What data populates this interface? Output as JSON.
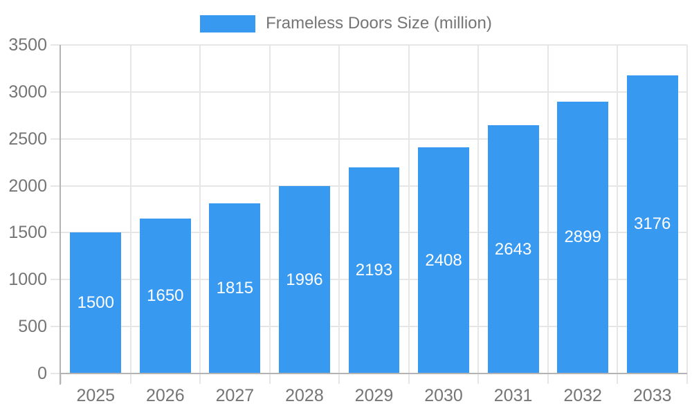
{
  "colors": {
    "bar": "#3899F0",
    "grid": "#E6E6E6",
    "axis": "#B3B3B3",
    "text": "#757575",
    "bar_label": "#FFFFFF",
    "background": "#FFFFFF"
  },
  "chart_data": {
    "type": "bar",
    "title": "Frameless Doors Size (million)",
    "series_name": "Frameless Doors Size (million)",
    "legend_position": "top",
    "categories": [
      "2025",
      "2026",
      "2027",
      "2028",
      "2029",
      "2030",
      "2031",
      "2032",
      "2033"
    ],
    "values": [
      1500,
      1650,
      1815,
      1996,
      2193,
      2408,
      2643,
      2899,
      3176
    ],
    "xlabel": "",
    "ylabel": "",
    "ylim": [
      0,
      3500
    ],
    "ytick_step": 500,
    "grid": true,
    "value_labels": "inside-center"
  }
}
